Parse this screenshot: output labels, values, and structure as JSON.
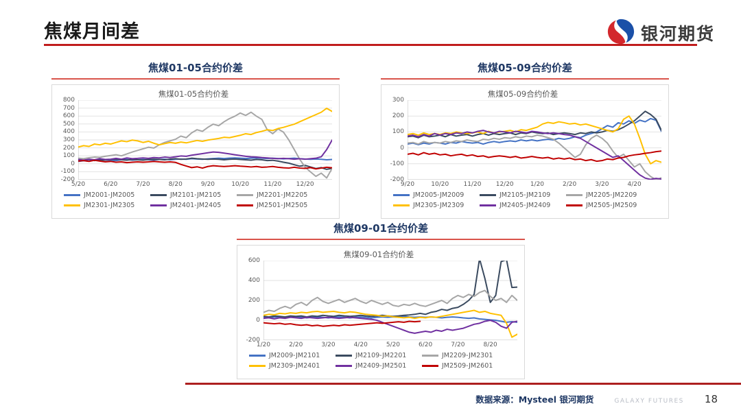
{
  "page": {
    "title": "焦煤月间差",
    "logo_text": "银河期货",
    "footer": {
      "source": "数据来源：Mysteel 银河期货",
      "brand": "GALAXY FUTURES",
      "page_num": "18"
    }
  },
  "palette": {
    "blue": "#4472C4",
    "navy": "#3A4A5F",
    "gray": "#A6A6A6",
    "yellow": "#FFC000",
    "purple": "#7030A0",
    "red": "#C00000"
  },
  "chart_data": [
    {
      "type": "line",
      "header": "焦煤01-05合约价差",
      "title": "焦煤01-05合约价差",
      "x_labels": [
        "5/20",
        "6/20",
        "7/20",
        "8/20",
        "9/20",
        "10/20",
        "11/20",
        "12/20"
      ],
      "ylim": [
        -200,
        800
      ],
      "ytick_step": 100,
      "grid": true,
      "legend_position": "bottom",
      "series": [
        {
          "name": "JM2001-JM2005",
          "color": "blue",
          "values": [
            30,
            38,
            34,
            44,
            40,
            48,
            44,
            40,
            50,
            54,
            46,
            50,
            54,
            50,
            46,
            54,
            58,
            50,
            56,
            60,
            56,
            64,
            60,
            56,
            62,
            66,
            70,
            66,
            72,
            74,
            70,
            66,
            70,
            74,
            70,
            66,
            70,
            66,
            62,
            66,
            70,
            64,
            60,
            56,
            60,
            56,
            50,
            54
          ]
        },
        {
          "name": "JM2101-JM2105",
          "color": "navy",
          "values": [
            50,
            44,
            54,
            40,
            50,
            46,
            54,
            58,
            50,
            46,
            54,
            50,
            46,
            54,
            58,
            54,
            50,
            58,
            64,
            56,
            60,
            70,
            64,
            60,
            56,
            60,
            56,
            50,
            56,
            60,
            54,
            50,
            46,
            54,
            50,
            40,
            44,
            34,
            20,
            8,
            -12,
            -30,
            -20,
            -40,
            -60,
            -48,
            -70,
            -58
          ]
        },
        {
          "name": "JM2201-JM2205",
          "color": "gray",
          "values": [
            70,
            64,
            76,
            84,
            80,
            94,
            104,
            114,
            100,
            124,
            148,
            168,
            188,
            208,
            198,
            238,
            268,
            288,
            308,
            348,
            328,
            388,
            428,
            408,
            458,
            498,
            478,
            528,
            568,
            598,
            638,
            608,
            648,
            598,
            558,
            428,
            378,
            438,
            398,
            298,
            178,
            58,
            -42,
            -102,
            -158,
            -118,
            -178,
            -58
          ]
        },
        {
          "name": "JM2301-JM2305",
          "color": "yellow",
          "values": [
            210,
            228,
            218,
            248,
            238,
            258,
            248,
            268,
            288,
            278,
            298,
            288,
            268,
            283,
            258,
            238,
            253,
            268,
            258,
            273,
            263,
            278,
            293,
            283,
            298,
            308,
            318,
            333,
            328,
            343,
            358,
            378,
            368,
            393,
            408,
            428,
            418,
            443,
            458,
            478,
            498,
            528,
            558,
            588,
            618,
            648,
            698,
            658
          ]
        },
        {
          "name": "JM2401-JM2405",
          "color": "purple",
          "values": [
            54,
            46,
            58,
            50,
            64,
            54,
            58,
            68,
            58,
            74,
            64,
            68,
            74,
            68,
            78,
            74,
            84,
            78,
            88,
            98,
            94,
            108,
            118,
            128,
            138,
            148,
            144,
            134,
            124,
            114,
            104,
            94,
            88,
            84,
            78,
            74,
            68,
            64,
            68,
            64,
            58,
            64,
            58,
            64,
            70,
            88,
            178,
            298
          ]
        },
        {
          "name": "JM2501-JM2505",
          "color": "red",
          "values": [
            34,
            40,
            30,
            44,
            34,
            24,
            30,
            20,
            24,
            14,
            20,
            24,
            20,
            24,
            30,
            24,
            20,
            24,
            18,
            -8,
            -28,
            -48,
            -38,
            -54,
            -34,
            -24,
            -30,
            -34,
            -30,
            -24,
            -30,
            -34,
            -40,
            -34,
            -44,
            -40,
            -34,
            -44,
            -50,
            -54,
            -44,
            -54,
            -58,
            -48,
            -64,
            -54,
            -44,
            -50
          ]
        }
      ]
    },
    {
      "type": "line",
      "header": "焦煤05-09合约价差",
      "title": "焦煤05-09合约价差",
      "x_labels": [
        "9/20",
        "10/20",
        "11/20",
        "12/20",
        "1/20",
        "2/20",
        "3/20",
        "4/20"
      ],
      "ylim": [
        -200,
        300
      ],
      "ytick_step": 100,
      "grid": true,
      "legend_position": "bottom",
      "series": [
        {
          "name": "JM2005-JM2009",
          "color": "blue",
          "values": [
            24,
            30,
            20,
            30,
            24,
            34,
            30,
            24,
            34,
            30,
            40,
            34,
            30,
            34,
            24,
            34,
            40,
            34,
            40,
            44,
            40,
            50,
            44,
            50,
            44,
            50,
            54,
            50,
            60,
            54,
            60,
            70,
            64,
            80,
            90,
            100,
            120,
            140,
            130,
            158,
            150,
            170,
            154,
            174,
            164,
            184,
            174,
            104
          ]
        },
        {
          "name": "JM2105-JM2109",
          "color": "navy",
          "values": [
            70,
            74,
            64,
            80,
            70,
            74,
            80,
            70,
            84,
            74,
            80,
            84,
            74,
            84,
            90,
            80,
            90,
            84,
            90,
            94,
            84,
            94,
            90,
            100,
            94,
            90,
            94,
            84,
            90,
            94,
            90,
            84,
            94,
            90,
            100,
            94,
            100,
            110,
            104,
            114,
            130,
            150,
            170,
            200,
            230,
            210,
            180,
            110
          ]
        },
        {
          "name": "JM2205-JM2209",
          "color": "gray",
          "values": [
            30,
            34,
            24,
            40,
            30,
            34,
            30,
            40,
            34,
            44,
            40,
            50,
            44,
            40,
            54,
            50,
            60,
            54,
            64,
            60,
            70,
            64,
            74,
            70,
            80,
            74,
            64,
            54,
            30,
            0,
            -30,
            -60,
            -40,
            20,
            60,
            80,
            60,
            30,
            -20,
            -60,
            -40,
            -80,
            -120,
            -100,
            -150,
            -180,
            -200,
            -188
          ]
        },
        {
          "name": "JM2305-JM2309",
          "color": "yellow",
          "values": [
            84,
            90,
            80,
            94,
            84,
            90,
            84,
            94,
            90,
            100,
            94,
            90,
            94,
            100,
            90,
            104,
            94,
            100,
            104,
            110,
            100,
            114,
            110,
            120,
            130,
            150,
            160,
            154,
            164,
            158,
            150,
            154,
            144,
            150,
            140,
            130,
            120,
            110,
            100,
            120,
            180,
            200,
            150,
            60,
            -40,
            -100,
            -80,
            -90
          ]
        },
        {
          "name": "JM2405-JM2409",
          "color": "purple",
          "values": [
            74,
            80,
            70,
            84,
            74,
            90,
            80,
            90,
            84,
            94,
            90,
            100,
            94,
            104,
            110,
            100,
            94,
            104,
            100,
            94,
            104,
            100,
            94,
            104,
            100,
            94,
            90,
            94,
            90,
            84,
            80,
            70,
            60,
            40,
            20,
            0,
            -20,
            -40,
            -60,
            -50,
            -80,
            -110,
            -140,
            -170,
            -190,
            -198,
            -192,
            -196
          ]
        },
        {
          "name": "JM2505-JM2509",
          "color": "red",
          "values": [
            -40,
            -34,
            -44,
            -30,
            -40,
            -34,
            -44,
            -40,
            -50,
            -44,
            -40,
            -50,
            -44,
            -54,
            -50,
            -60,
            -54,
            -50,
            -54,
            -60,
            -54,
            -64,
            -60,
            -54,
            -60,
            -64,
            -60,
            -70,
            -64,
            -70,
            -64,
            -74,
            -70,
            -80,
            -74,
            -84,
            -80,
            -70,
            -74,
            -64,
            -60,
            -50,
            -44,
            -40,
            -34,
            -30,
            -24,
            -20
          ]
        }
      ]
    },
    {
      "type": "line",
      "header": "焦煤09-01合约价差",
      "title": "焦煤09-01合约价差",
      "x_labels": [
        "1/20",
        "2/20",
        "3/20",
        "4/20",
        "5/20",
        "6/20",
        "7/20",
        "8/20"
      ],
      "ylim": [
        -200,
        600
      ],
      "ytick_step": 200,
      "grid": true,
      "legend_position": "bottom",
      "series": [
        {
          "name": "JM2009-JM2101",
          "color": "blue",
          "values": [
            30,
            24,
            34,
            30,
            24,
            34,
            30,
            34,
            24,
            30,
            34,
            30,
            24,
            30,
            34,
            30,
            24,
            30,
            34,
            30,
            24,
            30,
            34,
            30,
            34,
            30,
            40,
            34,
            30,
            34,
            30,
            34,
            30,
            24,
            30,
            34,
            30,
            24,
            20,
            24,
            14,
            10,
            4,
            0,
            -10,
            -20,
            -14,
            -20
          ]
        },
        {
          "name": "JM2109-JM2201",
          "color": "navy",
          "values": [
            40,
            34,
            44,
            40,
            34,
            44,
            40,
            44,
            34,
            44,
            40,
            50,
            44,
            40,
            50,
            44,
            40,
            44,
            50,
            44,
            40,
            44,
            50,
            44,
            40,
            44,
            50,
            54,
            60,
            70,
            60,
            80,
            90,
            110,
            100,
            120,
            130,
            160,
            200,
            260,
            620,
            420,
            180,
            250,
            590,
            610,
            330,
            334
          ]
        },
        {
          "name": "JM2209-JM2301",
          "color": "gray",
          "values": [
            80,
            100,
            90,
            120,
            140,
            120,
            160,
            180,
            150,
            200,
            230,
            190,
            170,
            190,
            210,
            180,
            200,
            220,
            190,
            170,
            200,
            180,
            160,
            180,
            150,
            140,
            160,
            150,
            170,
            150,
            140,
            160,
            180,
            200,
            170,
            220,
            250,
            230,
            260,
            240,
            280,
            300,
            240,
            200,
            220,
            180,
            250,
            200
          ]
        },
        {
          "name": "JM2309-JM2401",
          "color": "yellow",
          "values": [
            50,
            60,
            55,
            70,
            65,
            75,
            70,
            80,
            75,
            85,
            90,
            80,
            85,
            90,
            80,
            75,
            85,
            80,
            70,
            60,
            55,
            50,
            40,
            45,
            35,
            30,
            25,
            30,
            20,
            30,
            25,
            35,
            30,
            40,
            50,
            60,
            70,
            80,
            90,
            100,
            80,
            90,
            70,
            60,
            50,
            -30,
            -170,
            -140
          ]
        },
        {
          "name": "JM2409-JM2501",
          "color": "purple",
          "values": [
            20,
            25,
            15,
            25,
            20,
            30,
            25,
            20,
            30,
            25,
            20,
            25,
            30,
            25,
            20,
            25,
            30,
            25,
            20,
            15,
            10,
            0,
            -20,
            -40,
            -60,
            -80,
            -100,
            -120,
            -130,
            -120,
            -110,
            -120,
            -100,
            -110,
            -90,
            -100,
            -90,
            -80,
            -60,
            -40,
            -30,
            -10,
            0,
            -20,
            -60,
            -80,
            -20,
            -10
          ]
        },
        {
          "name": "JM2509-JM2601",
          "color": "red",
          "values": [
            -25,
            -30,
            -35,
            -30,
            -40,
            -35,
            -45,
            -50,
            -45,
            -55,
            -50,
            -60,
            -55,
            -50,
            -55,
            -45,
            -50,
            -45,
            -40,
            -35,
            -30,
            -25,
            -30,
            -25,
            -20,
            -15,
            -20,
            -10,
            -15,
            -10,
            null,
            null,
            null,
            null,
            null,
            null,
            null,
            null,
            null,
            null,
            null,
            null,
            null,
            null,
            null,
            null,
            null,
            null
          ]
        }
      ]
    }
  ]
}
